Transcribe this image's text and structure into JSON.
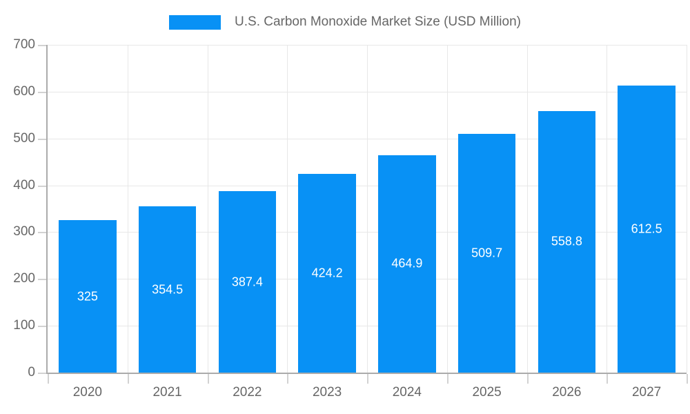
{
  "legend": {
    "label": "U.S. Carbon Monoxide Market Size (USD Million)",
    "position": "top"
  },
  "colors": {
    "bar": "#0891F5",
    "grid": "#e7e7e7",
    "axis": "#ababab",
    "tick": "#d2d2d2",
    "tick_text": "#666666",
    "bar_label_text": "#ffffff",
    "background": "#ffffff"
  },
  "chart_data": {
    "type": "bar",
    "title": "U.S. Carbon Monoxide Market Size (USD Million)",
    "categories": [
      "2020",
      "2021",
      "2022",
      "2023",
      "2024",
      "2025",
      "2026",
      "2027"
    ],
    "values": [
      325,
      354.5,
      387.4,
      424.2,
      464.9,
      509.7,
      558.8,
      612.5
    ],
    "value_labels": [
      "325",
      "354.5",
      "387.4",
      "424.2",
      "464.9",
      "509.7",
      "558.8",
      "612.5"
    ],
    "xlabel": "",
    "ylabel": "",
    "ylim": [
      0,
      700
    ],
    "yticks": [
      0,
      100,
      200,
      300,
      400,
      500,
      600,
      700
    ],
    "grid": true,
    "legend_position": "top",
    "bar_width_fraction": 0.72
  }
}
